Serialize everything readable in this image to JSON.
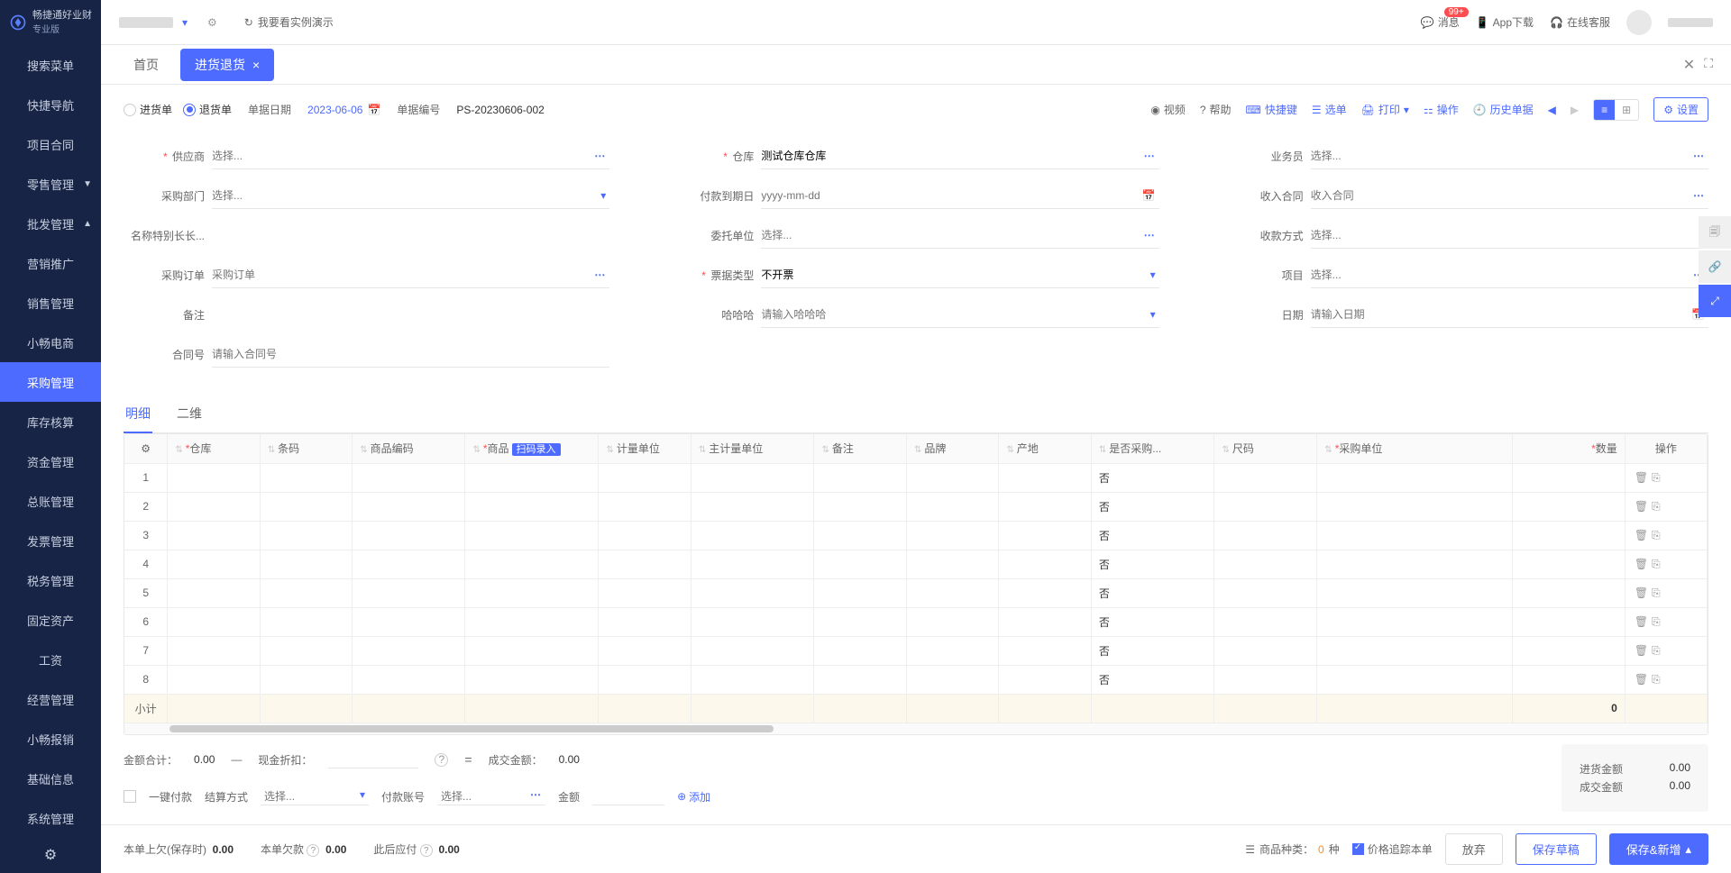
{
  "logo": {
    "title": "畅捷通好业财",
    "subtitle": "专业版"
  },
  "sidebar": [
    {
      "label": "搜索菜单"
    },
    {
      "label": "快捷导航"
    },
    {
      "label": "项目合同"
    },
    {
      "label": "零售管理",
      "arrow": "▼"
    },
    {
      "label": "批发管理",
      "arrow": "▲"
    },
    {
      "label": "营销推广"
    },
    {
      "label": "销售管理"
    },
    {
      "label": "小畅电商"
    },
    {
      "label": "采购管理",
      "active": true
    },
    {
      "label": "库存核算"
    },
    {
      "label": "资金管理"
    },
    {
      "label": "总账管理"
    },
    {
      "label": "发票管理"
    },
    {
      "label": "税务管理"
    },
    {
      "label": "固定资产"
    },
    {
      "label": "工资"
    },
    {
      "label": "经营管理"
    },
    {
      "label": "小畅报销"
    },
    {
      "label": "基础信息"
    },
    {
      "label": "系统管理"
    }
  ],
  "topbar": {
    "demo": "我要看实例演示",
    "msg": "消息",
    "badge": "99+",
    "app": "App下载",
    "service": "在线客服"
  },
  "tabs": {
    "home": "首页",
    "current": "进货退货"
  },
  "doc": {
    "radio1": "进货单",
    "radio2": "退货单",
    "dateLabel": "单据日期",
    "date": "2023-06-06",
    "noLabel": "单据编号",
    "no": "PS-20230606-002"
  },
  "toolbarRight": {
    "video": "视频",
    "help": "帮助",
    "shortcut": "快捷键",
    "select": "选单",
    "print": "打印",
    "operate": "操作",
    "history": "历史单据",
    "setting": "设置"
  },
  "form": {
    "supplier": {
      "label": "供应商",
      "ph": "选择...",
      "req": true,
      "icon": "dots"
    },
    "warehouse": {
      "label": "仓库",
      "ph": "",
      "val": "测试仓库仓库",
      "req": true,
      "icon": "dots"
    },
    "salesperson": {
      "label": "业务员",
      "ph": "选择...",
      "icon": "dots"
    },
    "dept": {
      "label": "采购部门",
      "ph": "选择...",
      "icon": "arrow"
    },
    "duedate": {
      "label": "付款到期日",
      "ph": "yyyy-mm-dd",
      "icon": "cal"
    },
    "incontract": {
      "label": "收入合同",
      "ph": "收入合同",
      "icon": "dots"
    },
    "longname": {
      "label": "名称特别长长..."
    },
    "entrust": {
      "label": "委托单位",
      "ph": "选择...",
      "icon": "dots"
    },
    "paymethod": {
      "label": "收款方式",
      "ph": "选择...",
      "icon": "arrow"
    },
    "po": {
      "label": "采购订单",
      "ph": "采购订单",
      "icon": "dots"
    },
    "invtype": {
      "label": "票据类型",
      "val": "不开票",
      "req": true,
      "icon": "arrow"
    },
    "project": {
      "label": "项目",
      "ph": "选择...",
      "icon": "dots"
    },
    "remark": {
      "label": "备注"
    },
    "haha": {
      "label": "哈哈哈",
      "ph": "请输入哈哈哈",
      "icon": "arrow"
    },
    "datef": {
      "label": "日期",
      "ph": "请输入日期",
      "icon": "cal"
    },
    "contractno": {
      "label": "合同号",
      "ph": "请输入合同号"
    }
  },
  "detailTabs": {
    "detail": "明细",
    "dim": "二维"
  },
  "tableHeaders": {
    "wh": "仓库",
    "barcode": "条码",
    "code": "商品编码",
    "product": "商品",
    "scan": "扫码录入",
    "unit": "计量单位",
    "mainunit": "主计量单位",
    "remark": "备注",
    "brand": "品牌",
    "origin": "产地",
    "ispo": "是否采购...",
    "size": "尺码",
    "pounit": "采购单位",
    "qty": "数量",
    "act": "操作"
  },
  "tableRows": [
    {
      "n": "1",
      "ispo": "否"
    },
    {
      "n": "2",
      "ispo": "否"
    },
    {
      "n": "3",
      "ispo": "否"
    },
    {
      "n": "4",
      "ispo": "否"
    },
    {
      "n": "5",
      "ispo": "否"
    },
    {
      "n": "6",
      "ispo": "否"
    },
    {
      "n": "7",
      "ispo": "否"
    },
    {
      "n": "8",
      "ispo": "否"
    }
  ],
  "subtotal": {
    "label": "小计",
    "qty": "0"
  },
  "summary": {
    "totalLabel": "金额合计：",
    "total": "0.00",
    "discountLabel": "现金折扣：",
    "dealLabel": "成交金额：",
    "deal": "0.00"
  },
  "payment": {
    "oneclick": "一键付款",
    "settleLabel": "结算方式",
    "ph1": "选择...",
    "acctLabel": "付款账号",
    "ph2": "选择...",
    "amtLabel": "金额",
    "add": "添加"
  },
  "totals": {
    "inLabel": "进货金额",
    "in": "0.00",
    "dealLabel": "成交金额",
    "deal": "0.00"
  },
  "footer": {
    "prev": "本单上欠(保存时)",
    "prevv": "0.00",
    "owe": "本单欠款",
    "owev": "0.00",
    "after": "此后应付",
    "afterv": "0.00",
    "kinds": "商品种类：",
    "kindsv": "0",
    "kindsu": "种",
    "priceTrack": "价格追踪本单",
    "discard": "放弃",
    "draft": "保存草稿",
    "save": "保存&新增"
  }
}
